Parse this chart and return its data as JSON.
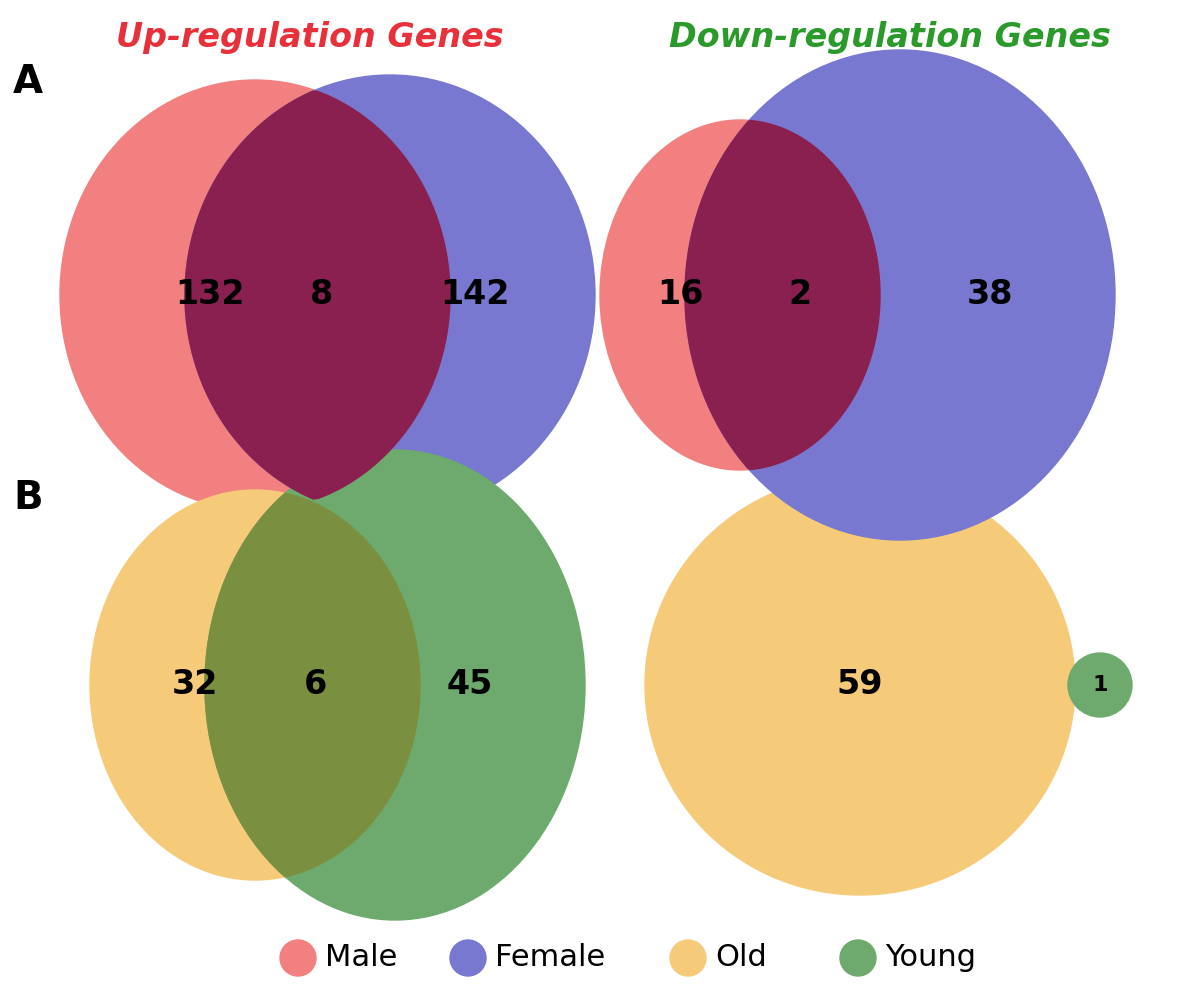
{
  "title_up": "Up-regulation Genes",
  "title_down": "Down-regulation Genes",
  "title_up_color": "#e8303a",
  "title_down_color": "#2a9a2a",
  "title_fontsize": 24,
  "label_fontsize": 28,
  "number_fontsize": 24,
  "up_left_val": "132",
  "up_inter_val": "8",
  "up_right_val": "142",
  "down_left_val": "16",
  "down_inter_val": "2",
  "down_right_val": "38",
  "b_left_val": "32",
  "b_inter_val": "6",
  "b_right_val": "45",
  "b2_main_val": "59",
  "b2_small_val": "1",
  "male_color": "#f28080",
  "female_color": "#7878d0",
  "old_color": "#f5cb7a",
  "young_color": "#6eaa6e",
  "inter_up_color": "#8a2050",
  "inter_down_color": "#8a2050",
  "inter_b_color": "#7a9040",
  "legend_fontsize": 22,
  "bg_color": "#ffffff"
}
